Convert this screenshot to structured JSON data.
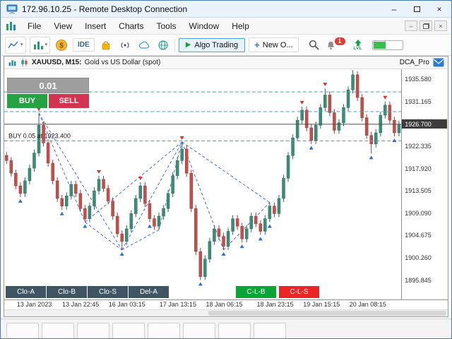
{
  "glyphs": {
    "minimize": "–",
    "close": "×",
    "caret": "▾",
    "play": "▶",
    "plus": "+",
    "dollar": "$"
  },
  "rdp": {
    "title": "172.96.10.25 - Remote Desktop Connection"
  },
  "menubar": {
    "items": [
      "File",
      "View",
      "Insert",
      "Charts",
      "Tools",
      "Window",
      "Help"
    ]
  },
  "toolbar": {
    "ide_label": "IDE",
    "algo_trading_label": "Algo Trading",
    "new_order_label": "New O...",
    "badge_count": "1",
    "lvl_label": "LVL"
  },
  "chart_window": {
    "title_symbol": "XAUUSD, M15:",
    "title_desc": "Gold vs US Dollar (spot)",
    "ea_name": "DCA_Pro"
  },
  "trade_panel": {
    "lot": "0.01",
    "buy_label": "BUY",
    "sell_label": "SELL",
    "position_label": "BUY 0.05 at 1923.400"
  },
  "ea_buttons": [
    "Clo-A",
    "Clo-B",
    "Clo-S",
    "Del-A",
    "C-L-B",
    "C-L-S"
  ],
  "chart_data": {
    "type": "candlestick",
    "symbol": "XAUUSD",
    "timeframe": "M15",
    "title": "XAUUSD, M15: Gold vs US Dollar (spot)",
    "ylim": [
      1892.0,
      1937.6
    ],
    "price_axis": [
      1935.58,
      1931.165,
      1922.335,
      1917.92,
      1913.505,
      1909.09,
      1904.675,
      1900.26,
      1895.845
    ],
    "current_price": 1926.7,
    "price_label": "1926.700",
    "position_price": 1923.4,
    "levels": [
      {
        "price": 1933.1,
        "style": "dashed"
      },
      {
        "price": 1929.2,
        "style": "dashed"
      },
      {
        "price": 1926.7,
        "style": "current"
      },
      {
        "price": 1923.4,
        "style": "dashed"
      }
    ],
    "time_axis": [
      "13 Jan 2023",
      "13 Jan 22:45",
      "16 Jan 03:15",
      "17 Jan 13:15",
      "18 Jan 06:15",
      "18 Jan 23:15",
      "19 Jan 15:15",
      "20 Jan 08:15"
    ],
    "time_axis_pos": [
      6,
      16,
      26,
      37,
      47,
      58,
      68,
      78
    ],
    "candles": [
      [
        1920.5,
        1921.2,
        1918.8,
        1919.5
      ],
      [
        1919.5,
        1920.2,
        1916.3,
        1917.0
      ],
      [
        1917.0,
        1917.7,
        1913.8,
        1914.5
      ],
      [
        1914.5,
        1915.2,
        1912.3,
        1913.0
      ],
      [
        1913.0,
        1916.2,
        1912.3,
        1915.5
      ],
      [
        1915.5,
        1918.7,
        1914.8,
        1918.0
      ],
      [
        1918.0,
        1921.7,
        1917.3,
        1921.0
      ],
      [
        1921.0,
        1928.9,
        1920.3,
        1926.5
      ],
      [
        1926.5,
        1927.2,
        1922.3,
        1923.0
      ],
      [
        1923.0,
        1923.7,
        1918.3,
        1919.0
      ],
      [
        1919.0,
        1919.7,
        1914.8,
        1915.5
      ],
      [
        1915.5,
        1916.2,
        1911.3,
        1912.0
      ],
      [
        1912.0,
        1912.7,
        1909.8,
        1910.5
      ],
      [
        1910.5,
        1913.2,
        1909.8,
        1912.5
      ],
      [
        1912.5,
        1915.5,
        1911.8,
        1914.8
      ],
      [
        1914.8,
        1915.5,
        1912.3,
        1913.0
      ],
      [
        1913.0,
        1913.7,
        1909.3,
        1910.0
      ],
      [
        1910.0,
        1910.7,
        1907.3,
        1908.0
      ],
      [
        1908.0,
        1911.2,
        1907.3,
        1910.5
      ],
      [
        1910.5,
        1914.2,
        1909.8,
        1913.5
      ],
      [
        1913.5,
        1916.5,
        1912.8,
        1915.8
      ],
      [
        1915.8,
        1916.5,
        1913.3,
        1914.0
      ],
      [
        1914.0,
        1914.7,
        1910.8,
        1911.5
      ],
      [
        1911.5,
        1912.2,
        1907.8,
        1908.5
      ],
      [
        1908.5,
        1909.2,
        1904.3,
        1905.0
      ],
      [
        1905.0,
        1905.7,
        1901.8,
        1903.5
      ],
      [
        1903.5,
        1906.7,
        1902.8,
        1906.0
      ],
      [
        1906.0,
        1909.7,
        1905.3,
        1909.0
      ],
      [
        1909.0,
        1912.7,
        1908.3,
        1912.0
      ],
      [
        1912.0,
        1915.2,
        1911.3,
        1914.5
      ],
      [
        1914.5,
        1915.2,
        1910.3,
        1911.0
      ],
      [
        1911.0,
        1911.7,
        1907.3,
        1908.0
      ],
      [
        1908.0,
        1908.7,
        1905.8,
        1906.5
      ],
      [
        1906.5,
        1909.2,
        1905.8,
        1908.5
      ],
      [
        1908.5,
        1910.7,
        1907.8,
        1910.0
      ],
      [
        1910.0,
        1913.7,
        1909.3,
        1913.0
      ],
      [
        1913.0,
        1917.2,
        1912.3,
        1916.5
      ],
      [
        1916.5,
        1920.2,
        1915.8,
        1919.5
      ],
      [
        1919.5,
        1923.2,
        1918.8,
        1921.8
      ],
      [
        1921.8,
        1922.5,
        1916.3,
        1917.0
      ],
      [
        1917.0,
        1917.7,
        1909.3,
        1910.0
      ],
      [
        1910.0,
        1910.7,
        1900.8,
        1901.5
      ],
      [
        1901.5,
        1902.2,
        1895.85,
        1896.5
      ],
      [
        1896.5,
        1900.7,
        1895.9,
        1900.0
      ],
      [
        1900.0,
        1904.2,
        1899.3,
        1903.5
      ],
      [
        1903.5,
        1906.7,
        1902.8,
        1906.0
      ],
      [
        1906.0,
        1906.7,
        1903.8,
        1904.5
      ],
      [
        1904.5,
        1905.2,
        1901.8,
        1902.5
      ],
      [
        1902.5,
        1906.2,
        1901.8,
        1905.5
      ],
      [
        1905.5,
        1908.7,
        1904.8,
        1908.0
      ],
      [
        1908.0,
        1908.7,
        1905.8,
        1906.5
      ],
      [
        1906.5,
        1907.2,
        1903.3,
        1904.0
      ],
      [
        1904.0,
        1906.7,
        1903.3,
        1906.0
      ],
      [
        1906.0,
        1909.2,
        1905.3,
        1908.5
      ],
      [
        1908.5,
        1909.2,
        1906.3,
        1907.0
      ],
      [
        1907.0,
        1907.7,
        1904.8,
        1905.5
      ],
      [
        1905.5,
        1908.7,
        1904.8,
        1908.0
      ],
      [
        1908.0,
        1911.2,
        1907.3,
        1910.5
      ],
      [
        1910.5,
        1911.2,
        1908.3,
        1909.0
      ],
      [
        1909.0,
        1912.7,
        1908.3,
        1912.0
      ],
      [
        1912.0,
        1916.7,
        1911.3,
        1916.0
      ],
      [
        1916.0,
        1921.2,
        1915.3,
        1920.5
      ],
      [
        1920.5,
        1924.7,
        1919.8,
        1924.0
      ],
      [
        1924.0,
        1928.2,
        1923.3,
        1927.5
      ],
      [
        1927.5,
        1930.2,
        1926.8,
        1929.5
      ],
      [
        1929.5,
        1930.2,
        1925.3,
        1926.0
      ],
      [
        1926.0,
        1926.7,
        1922.8,
        1923.5
      ],
      [
        1923.5,
        1927.2,
        1922.8,
        1926.5
      ],
      [
        1926.5,
        1930.7,
        1925.8,
        1930.0
      ],
      [
        1930.0,
        1933.8,
        1929.3,
        1932.5
      ],
      [
        1932.5,
        1933.2,
        1928.3,
        1929.0
      ],
      [
        1929.0,
        1929.7,
        1924.8,
        1925.5
      ],
      [
        1925.5,
        1927.7,
        1924.8,
        1927.0
      ],
      [
        1927.0,
        1930.7,
        1926.3,
        1930.0
      ],
      [
        1930.0,
        1934.2,
        1929.3,
        1933.5
      ],
      [
        1933.5,
        1937.4,
        1932.8,
        1936.5
      ],
      [
        1936.5,
        1937.2,
        1931.3,
        1932.0
      ],
      [
        1932.0,
        1932.7,
        1927.3,
        1928.0
      ],
      [
        1928.0,
        1928.7,
        1923.8,
        1924.5
      ],
      [
        1924.5,
        1925.2,
        1920.9,
        1922.8
      ],
      [
        1922.8,
        1925.7,
        1922.1,
        1925.0
      ],
      [
        1925.0,
        1929.2,
        1924.3,
        1928.5
      ],
      [
        1928.5,
        1931.2,
        1927.8,
        1930.5
      ],
      [
        1930.5,
        1931.2,
        1926.8,
        1927.5
      ],
      [
        1927.5,
        1928.2,
        1924.3,
        1925.0
      ],
      [
        1925.0,
        1927.4,
        1924.3,
        1926.7
      ]
    ],
    "zigzag_segments": [
      [
        [
          7,
          1928.9
        ],
        [
          17,
          1907.3
        ]
      ],
      [
        [
          7,
          1928.9
        ],
        [
          25,
          1901.8
        ]
      ],
      [
        [
          17,
          1907.3
        ],
        [
          25,
          1901.8
        ]
      ],
      [
        [
          17,
          1907.3
        ],
        [
          38,
          1923.2
        ]
      ],
      [
        [
          25,
          1901.8
        ],
        [
          33,
          1905.8
        ]
      ],
      [
        [
          25,
          1901.8
        ],
        [
          38,
          1923.2
        ]
      ],
      [
        [
          33,
          1905.8
        ],
        [
          38,
          1923.2
        ]
      ],
      [
        [
          38,
          1923.2
        ],
        [
          47,
          1901.8
        ]
      ],
      [
        [
          38,
          1923.2
        ],
        [
          57,
          1911.2
        ]
      ],
      [
        [
          47,
          1901.8
        ],
        [
          57,
          1911.2
        ]
      ]
    ],
    "sell_markers": [
      7,
      20,
      29,
      38,
      64,
      69,
      75,
      82
    ],
    "buy_markers": [
      3,
      12,
      17,
      25,
      31,
      42,
      47,
      51,
      55,
      57,
      66,
      79,
      84
    ]
  }
}
